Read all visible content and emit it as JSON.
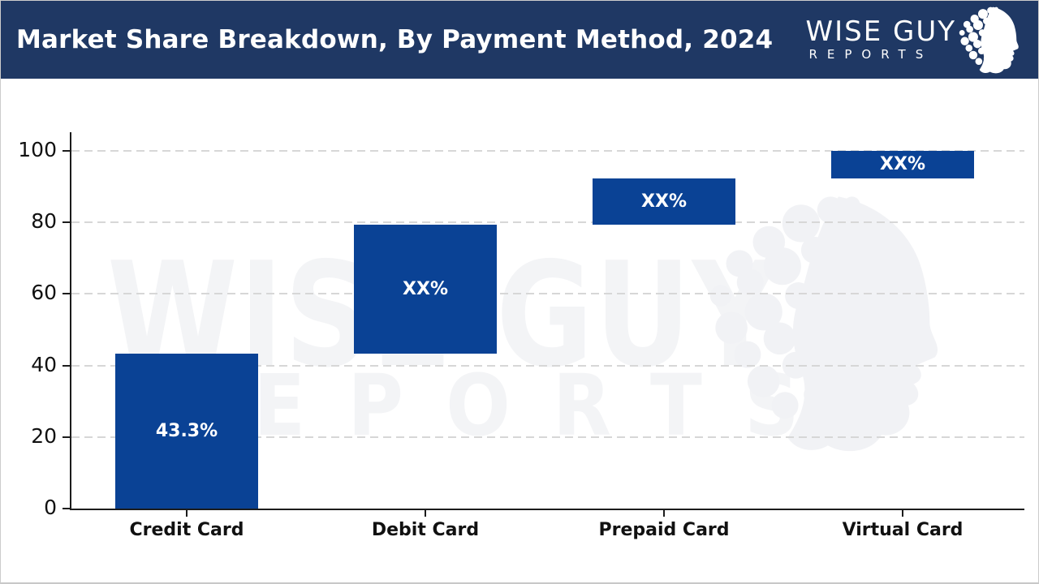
{
  "header": {
    "title": "Market Share Breakdown, By Payment Method, 2024",
    "logo": {
      "line1": "WISE GUY",
      "line2": "REPORTS"
    }
  },
  "watermark": {
    "line1": "WISE GUY",
    "line2": "REPORTS"
  },
  "colors": {
    "header_bg": "#1F3864",
    "bar": "#0A4295",
    "grid": "#D7D7D7",
    "axis": "#1C1C1C",
    "bar_label": "#FFFFFF",
    "watermark": "#F3F4F6"
  },
  "chart_data": {
    "type": "bar",
    "subtype": "waterfall",
    "title": "Market Share Breakdown, By Payment Method, 2024",
    "categories": [
      "Credit Card",
      "Debit Card",
      "Prepaid Card",
      "Virtual Card"
    ],
    "segments": [
      {
        "category": "Credit Card",
        "start": 0,
        "end": 43.3,
        "label": "43.3%"
      },
      {
        "category": "Debit Card",
        "start": 43.3,
        "end": 79.3,
        "label": "XX%"
      },
      {
        "category": "Prepaid Card",
        "start": 79.3,
        "end": 92.3,
        "label": "XX%"
      },
      {
        "category": "Virtual Card",
        "start": 92.3,
        "end": 100,
        "label": "XX%"
      }
    ],
    "xlabel": "",
    "ylabel": "",
    "ylim": [
      0,
      100
    ],
    "yticks": [
      0,
      20,
      40,
      60,
      80,
      100
    ],
    "grid": "horizontal-dashed",
    "legend": "none",
    "bar_color": "#0A4295"
  }
}
